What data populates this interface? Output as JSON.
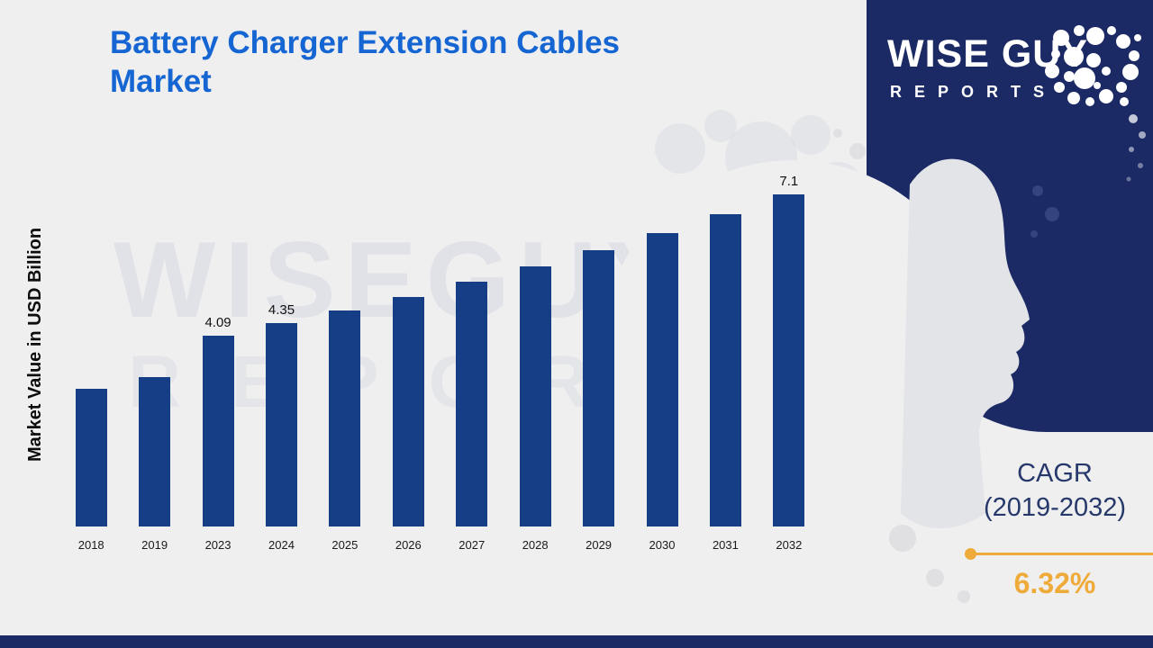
{
  "header": {
    "title": "Battery Charger Extension Cables Market"
  },
  "logo": {
    "brand": "WISE GUY",
    "sub": "REPORTS"
  },
  "watermark": {
    "brand": "WISEGUY",
    "sub": "REPORTS"
  },
  "cagr": {
    "label": "CAGR",
    "range": "(2019-2032)",
    "value": "6.32%"
  },
  "colors": {
    "title_blue": "#1565d2",
    "panel_navy": "#1b2a64",
    "bar_navy": "#153e86",
    "gold": "#efab3a",
    "background": "#efeff0"
  },
  "chart_data": {
    "type": "bar",
    "title": "Battery Charger Extension Cables Market",
    "xlabel": "",
    "ylabel": "Market Value in USD Billion",
    "categories": [
      "2018",
      "2019",
      "2023",
      "2024",
      "2025",
      "2026",
      "2027",
      "2028",
      "2029",
      "2030",
      "2031",
      "2032"
    ],
    "values": [
      2.95,
      3.2,
      4.09,
      4.35,
      4.62,
      4.92,
      5.23,
      5.56,
      5.91,
      6.28,
      6.68,
      7.1
    ],
    "bar_labels": {
      "2023": "4.09",
      "2024": "4.35",
      "2032": "7.1"
    },
    "ylim": [
      0,
      7.8
    ],
    "bar_color": "#153e86",
    "grid": false,
    "legend": false
  }
}
